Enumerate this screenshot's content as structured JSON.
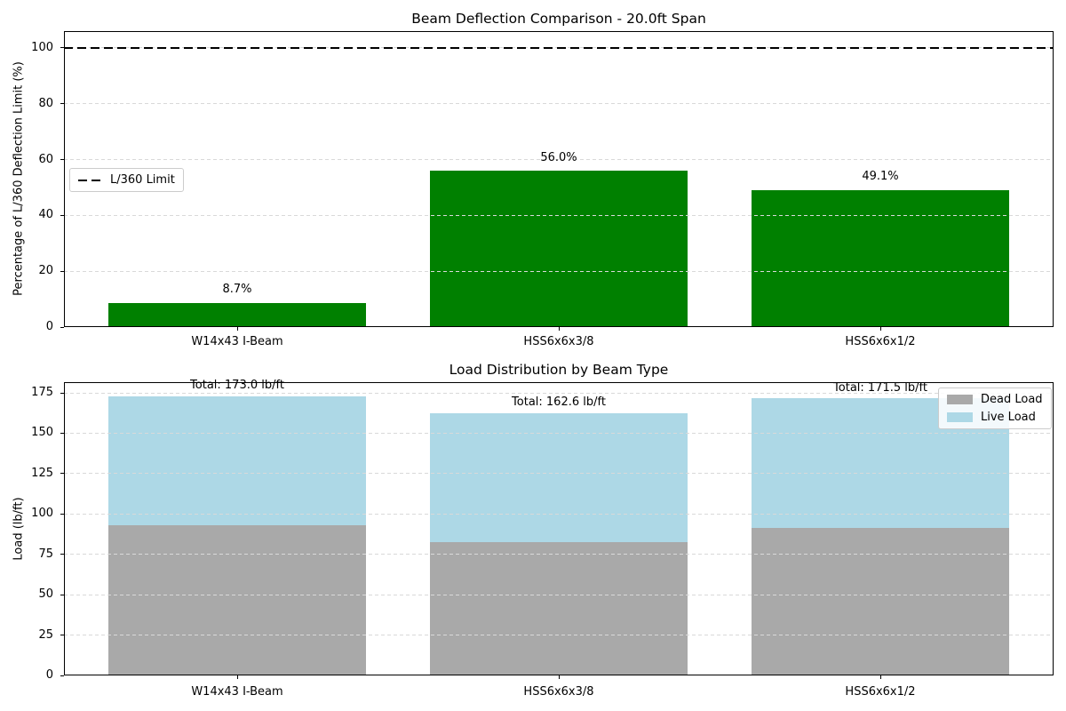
{
  "chart_data": [
    {
      "type": "bar",
      "title": "Beam Deflection Comparison - 20.0ft Span",
      "ylabel": "Percentage of L/360 Deflection Limit (%)",
      "xlabel": "",
      "categories": [
        "W14x43 I-Beam",
        "HSS6x6x3/8",
        "HSS6x6x1/2"
      ],
      "values": [
        8.7,
        56.0,
        49.1
      ],
      "value_labels": [
        "8.7%",
        "56.0%",
        "49.1%"
      ],
      "bar_color": "#008000",
      "yticks": [
        0,
        20,
        40,
        60,
        80,
        100
      ],
      "ylim": [
        0,
        106
      ],
      "grid": true,
      "gridline_color": "#d9d9d9",
      "limit_line": {
        "value": 100,
        "style": "dashed",
        "color": "#000000"
      },
      "legend": {
        "position": "center-left",
        "entries": [
          {
            "label": "L/360 Limit",
            "marker": "dashed-line",
            "color": "#000000"
          }
        ]
      }
    },
    {
      "type": "stacked-bar",
      "title": "Load Distribution by Beam Type",
      "ylabel": "Load (lb/ft)",
      "xlabel": "",
      "categories": [
        "W14x43 I-Beam",
        "HSS6x6x3/8",
        "HSS6x6x1/2"
      ],
      "series": [
        {
          "name": "Dead Load",
          "color": "#a9a9a9",
          "values": [
            93.0,
            82.6,
            91.5
          ]
        },
        {
          "name": "Live Load",
          "color": "#add8e6",
          "values": [
            80.0,
            80.0,
            80.0
          ]
        }
      ],
      "totals": [
        173.0,
        162.6,
        171.5
      ],
      "total_labels": [
        "Total: 173.0 lb/ft",
        "Total: 162.6 lb/ft",
        "Total: 171.5 lb/ft"
      ],
      "yticks": [
        0,
        25,
        50,
        75,
        100,
        125,
        150,
        175
      ],
      "ylim": [
        0,
        181.65
      ],
      "grid": true,
      "gridline_color": "#d9d9d9",
      "legend": {
        "position": "upper-right",
        "entries": [
          {
            "label": "Dead Load",
            "marker": "patch",
            "color": "#a9a9a9"
          },
          {
            "label": "Live Load",
            "marker": "patch",
            "color": "#add8e6"
          }
        ]
      }
    }
  ]
}
